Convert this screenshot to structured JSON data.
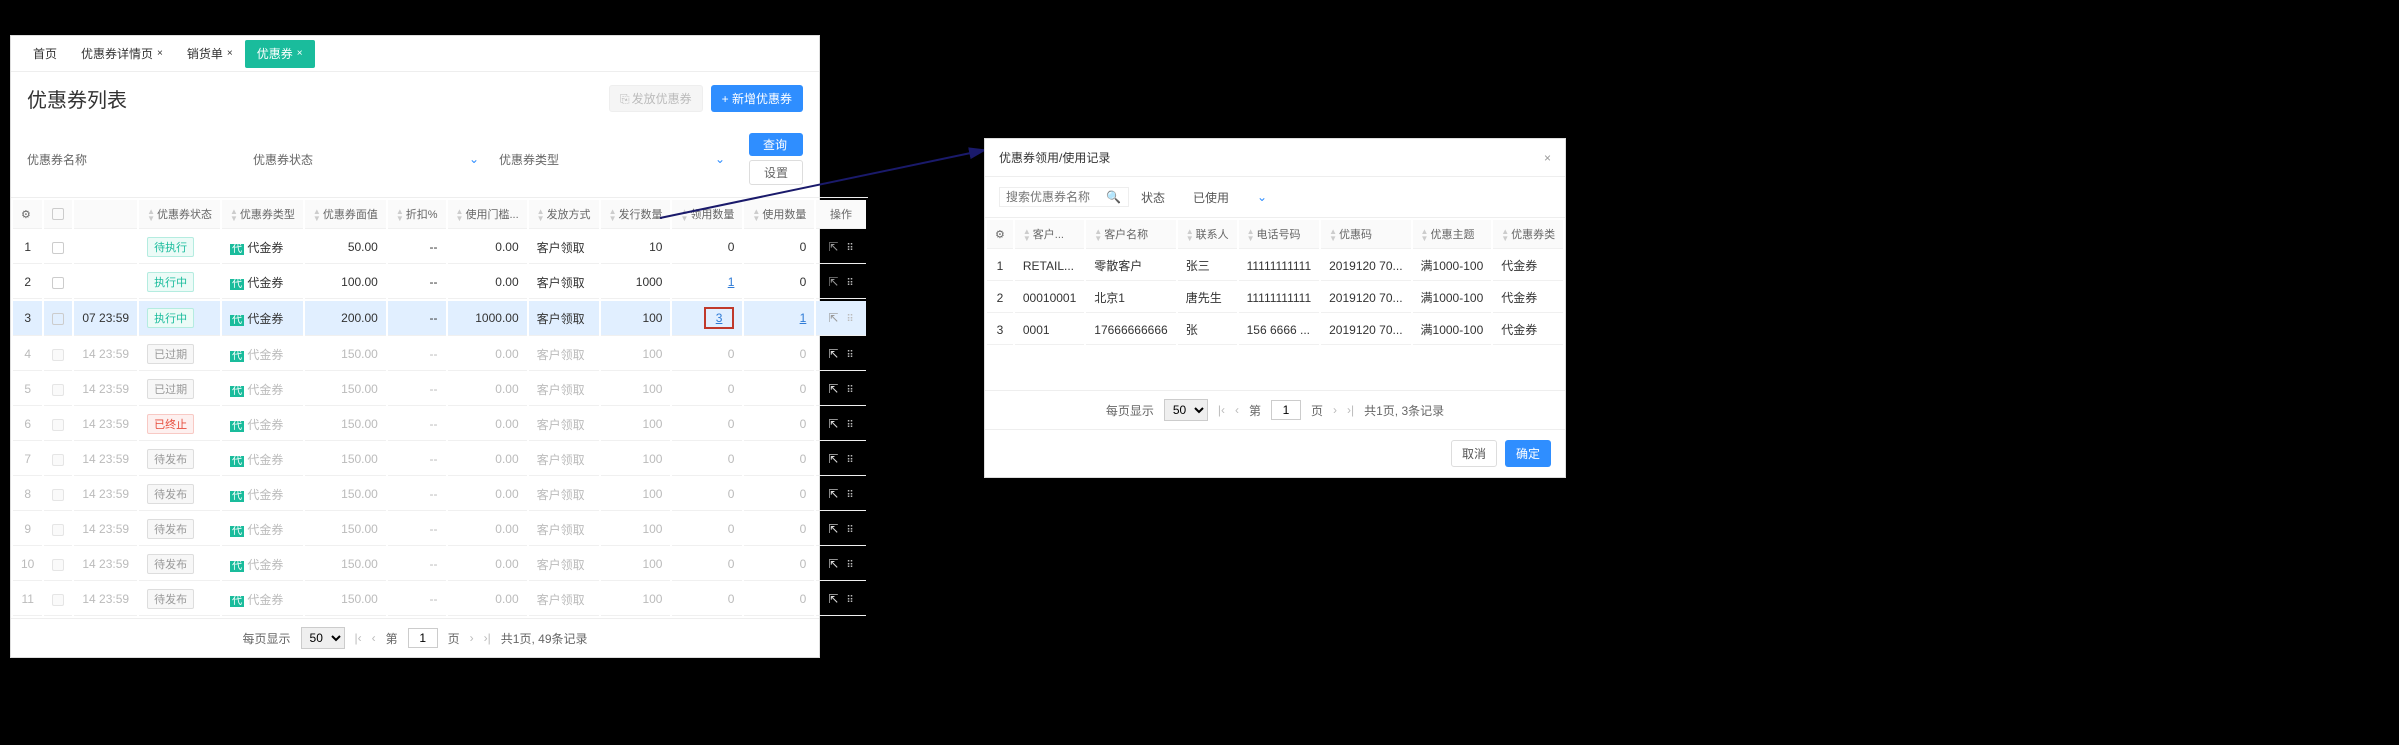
{
  "tabs": {
    "home": "首页",
    "detail": "优惠券详情页",
    "sales": "销货单",
    "coupon": "优惠券"
  },
  "page": {
    "title": "优惠券列表",
    "btn_issue": "发放优惠券",
    "btn_new": "+ 新增优惠券"
  },
  "filters": {
    "name_label": "优惠券名称",
    "status_label": "优惠券状态",
    "type_label": "优惠券类型",
    "query": "查询",
    "settings": "设置"
  },
  "columns": {
    "status": "优惠券状态",
    "type": "优惠券类型",
    "face": "优惠券面值",
    "discount": "折扣%",
    "threshold": "使用门槛...",
    "method": "发放方式",
    "issue_qty": "发行数量",
    "claim_qty": "领用数量",
    "use_qty": "使用数量",
    "ops": "操作"
  },
  "status_labels": {
    "pending": "待执行",
    "running": "执行中",
    "expired": "已过期",
    "stopped": "已终止",
    "draft": "待发布"
  },
  "type_label": "代金券",
  "method_label": "客户领取",
  "rows": [
    {
      "id": 1,
      "time": "",
      "status": "pending",
      "face": "50.00",
      "discount": "--",
      "thresh": "0.00",
      "issue": "10",
      "claim": "0",
      "use": "0",
      "dim": false
    },
    {
      "id": 2,
      "time": "",
      "status": "running",
      "face": "100.00",
      "discount": "--",
      "thresh": "0.00",
      "issue": "1000",
      "claim": "1",
      "use": "0",
      "dim": false
    },
    {
      "id": 3,
      "time": "07 23:59",
      "status": "running",
      "face": "200.00",
      "discount": "--",
      "thresh": "1000.00",
      "issue": "100",
      "claim": "3",
      "use": "1",
      "dim": false,
      "sel": true,
      "boxed": true
    },
    {
      "id": 4,
      "time": "14 23:59",
      "status": "expired",
      "face": "150.00",
      "discount": "--",
      "thresh": "0.00",
      "issue": "100",
      "claim": "0",
      "use": "0",
      "dim": true
    },
    {
      "id": 5,
      "time": "14 23:59",
      "status": "expired",
      "face": "150.00",
      "discount": "--",
      "thresh": "0.00",
      "issue": "100",
      "claim": "0",
      "use": "0",
      "dim": true
    },
    {
      "id": 6,
      "time": "14 23:59",
      "status": "stopped",
      "face": "150.00",
      "discount": "--",
      "thresh": "0.00",
      "issue": "100",
      "claim": "0",
      "use": "0",
      "dim": true
    },
    {
      "id": 7,
      "time": "14 23:59",
      "status": "draft",
      "face": "150.00",
      "discount": "--",
      "thresh": "0.00",
      "issue": "100",
      "claim": "0",
      "use": "0",
      "dim": true
    },
    {
      "id": 8,
      "time": "14 23:59",
      "status": "draft",
      "face": "150.00",
      "discount": "--",
      "thresh": "0.00",
      "issue": "100",
      "claim": "0",
      "use": "0",
      "dim": true
    },
    {
      "id": 9,
      "time": "14 23:59",
      "status": "draft",
      "face": "150.00",
      "discount": "--",
      "thresh": "0.00",
      "issue": "100",
      "claim": "0",
      "use": "0",
      "dim": true
    },
    {
      "id": 10,
      "time": "14 23:59",
      "status": "draft",
      "face": "150.00",
      "discount": "--",
      "thresh": "0.00",
      "issue": "100",
      "claim": "0",
      "use": "0",
      "dim": true
    },
    {
      "id": 11,
      "time": "14 23:59",
      "status": "draft",
      "face": "150.00",
      "discount": "--",
      "thresh": "0.00",
      "issue": "100",
      "claim": "0",
      "use": "0",
      "dim": true
    }
  ],
  "pager": {
    "per_label": "每页显示",
    "per_val": "50",
    "page_label_l": "第",
    "page_val": "1",
    "page_label_r": "页",
    "summary": "共1页, 49条记录"
  },
  "modal": {
    "title": "优惠券领用/使用记录",
    "search_placeholder": "搜索优惠券名称",
    "state_label": "状态",
    "state_value": "已使用",
    "columns": {
      "code": "客户...",
      "name": "客户名称",
      "contact": "联系人",
      "phone": "电话号码",
      "ccode": "优惠码",
      "topic": "优惠主题",
      "ctype": "优惠券类"
    },
    "rows": [
      {
        "id": 1,
        "code": "RETAIL...",
        "name": "零散客户",
        "contact": "张三",
        "phone": "11111111111",
        "ccode": "2019120 70...",
        "topic": "满1000-100",
        "ctype": "代金券"
      },
      {
        "id": 2,
        "code": "00010001",
        "name": "北京1",
        "contact": "唐先生",
        "phone": "11111111111",
        "ccode": "2019120 70...",
        "topic": "满1000-100",
        "ctype": "代金券"
      },
      {
        "id": 3,
        "code": "0001",
        "name": "17666666666",
        "contact": "张",
        "phone": "156 6666 ...",
        "ccode": "2019120 70...",
        "topic": "满1000-100",
        "ctype": "代金券"
      }
    ],
    "pager_summary": "共1页, 3条记录",
    "btn_cancel": "取消",
    "btn_ok": "确定"
  },
  "colors": {
    "accent": "#2f8eff",
    "teal": "#1abc9c"
  }
}
